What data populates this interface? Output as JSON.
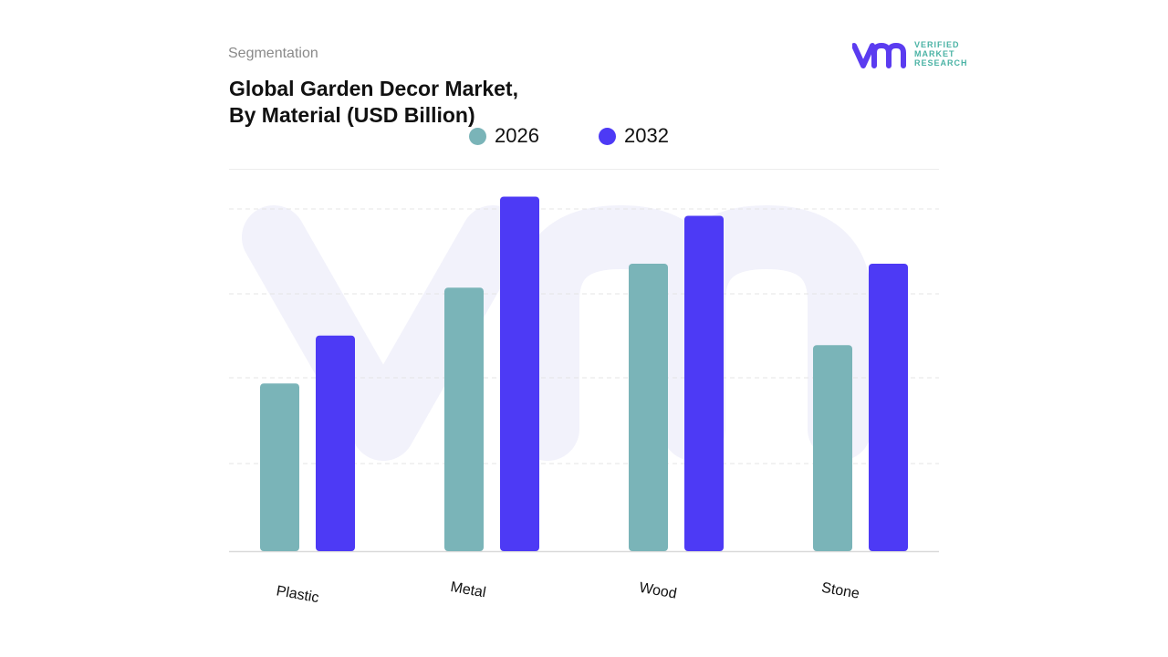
{
  "header": {
    "eyebrow": "Segmentation",
    "title_line1": "Global Garden Decor Market,",
    "title_line2": "By Material (USD Billion)"
  },
  "logo": {
    "line1": "VERIFIED",
    "line2": "MARKET",
    "line3": "RESEARCH",
    "mark_color": "#5b3cf0",
    "text_color": "#4bb3a5"
  },
  "chart_data": {
    "type": "bar",
    "title": "Global Garden Decor Market, By Material (USD Billion)",
    "categories": [
      "Plastic",
      "Metal",
      "Wood",
      "Stone"
    ],
    "series": [
      {
        "name": "2026",
        "color": "#7ab4b8",
        "values": [
          1.75,
          2.75,
          3.0,
          2.15
        ]
      },
      {
        "name": "2032",
        "color": "#4d3af5",
        "values": [
          2.25,
          3.7,
          3.5,
          3.0
        ]
      }
    ],
    "ylim": [
      0,
      4.0
    ],
    "grid": true,
    "legend": "top-center",
    "xlabel": "",
    "ylabel": ""
  }
}
